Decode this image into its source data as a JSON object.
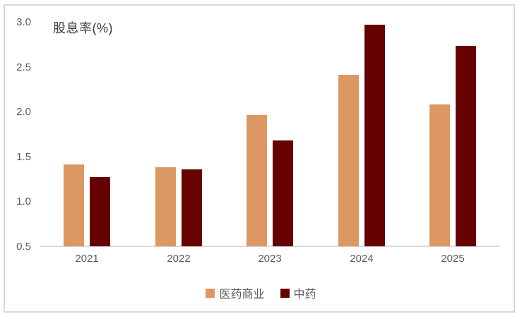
{
  "chart_data": {
    "type": "bar",
    "title": "股息率(%)",
    "categories": [
      "2021",
      "2022",
      "2023",
      "2024",
      "2025"
    ],
    "series": [
      {
        "name": "医药商业",
        "color": "#dc9762",
        "values": [
          1.41,
          1.38,
          1.96,
          2.41,
          2.08
        ]
      },
      {
        "name": "中药",
        "color": "#660202",
        "values": [
          1.27,
          1.36,
          1.68,
          2.97,
          2.73
        ]
      }
    ],
    "ylim": [
      0.5,
      3.0
    ],
    "yticks": [
      0.5,
      1.0,
      1.5,
      2.0,
      2.5,
      3.0
    ],
    "ytick_labels": [
      "0.5",
      "1.0",
      "1.5",
      "2.0",
      "2.5",
      "3.0"
    ],
    "xlabel": "",
    "ylabel": "",
    "grid": false,
    "legend_position": "bottom",
    "frame_color": "#d8d8d8",
    "axis_line_color": "#d9d9d9",
    "tick_label_color": "#595959",
    "title_color": "#3a3a3a"
  }
}
